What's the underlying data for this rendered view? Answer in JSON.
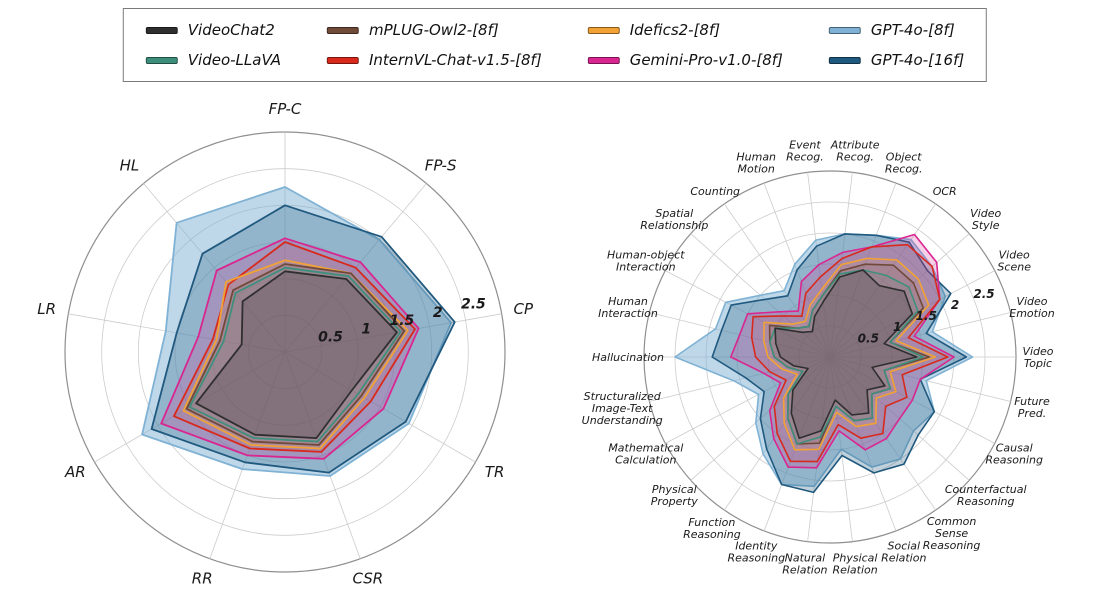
{
  "legend": {
    "position": "top",
    "items": [
      {
        "label": "VideoChat2",
        "color": "#2f2f2f"
      },
      {
        "label": "mPLUG-Owl2-[8f]",
        "color": "#6f4a38"
      },
      {
        "label": "Idefics2-[8f]",
        "color": "#f2a234"
      },
      {
        "label": "GPT-4o-[8f]",
        "color": "#7fb2d4"
      },
      {
        "label": "Video-LLaVA",
        "color": "#3d8f7c"
      },
      {
        "label": "InternVL-Chat-v1.5-[8f]",
        "color": "#d9291c"
      },
      {
        "label": "Gemini-Pro-v1.0-[8f]",
        "color": "#d92690"
      },
      {
        "label": "GPT-4o-[16f]",
        "color": "#20597f"
      }
    ]
  },
  "chart_data": [
    {
      "type": "radar",
      "grid": "polar-circles-and-spokes",
      "legend_position": "top-shared",
      "categories": [
        "FP-C",
        "FP-S",
        "CP",
        "TR",
        "CSR",
        "RR",
        "AR",
        "LR",
        "HL"
      ],
      "rticks": [
        "0.5",
        "1",
        "1.5",
        "2",
        "2.5"
      ],
      "rtick_values": [
        0.5,
        1,
        1.5,
        2,
        2.5
      ],
      "rmax": 3.0,
      "series": [
        {
          "name": "GPT-4o-[8f]",
          "color": "#7fb2d4",
          "alpha": 0.5,
          "values": [
            2.25,
            2.0,
            2.3,
            1.95,
            1.8,
            1.7,
            2.25,
            1.65,
            2.3
          ]
        },
        {
          "name": "GPT-4o-[16f]",
          "color": "#20597f",
          "alpha": 0.28,
          "values": [
            2.0,
            2.05,
            2.35,
            1.9,
            1.75,
            1.6,
            2.1,
            1.5,
            1.75
          ]
        },
        {
          "name": "Gemini-Pro-v1.0-[8f]",
          "color": "#d92690",
          "alpha": 0.22,
          "values": [
            1.55,
            1.6,
            1.85,
            1.55,
            1.55,
            1.5,
            1.95,
            1.2,
            1.45
          ]
        },
        {
          "name": "InternVL-Chat-v1.5-[8f]",
          "color": "#d9291c",
          "alpha": 0.1,
          "values": [
            1.5,
            1.5,
            1.8,
            1.35,
            1.45,
            1.4,
            1.75,
            1.0,
            1.2
          ]
        },
        {
          "name": "Idefics2-[8f]",
          "color": "#f2a234",
          "alpha": 0.1,
          "values": [
            1.25,
            1.4,
            1.7,
            1.25,
            1.4,
            1.35,
            1.6,
            0.95,
            1.25
          ]
        },
        {
          "name": "mPLUG-Owl2-[8f]",
          "color": "#6f4a38",
          "alpha": 0.12,
          "values": [
            1.2,
            1.4,
            1.65,
            1.2,
            1.35,
            1.3,
            1.55,
            0.9,
            1.1
          ]
        },
        {
          "name": "Video-LLaVA",
          "color": "#3d8f7c",
          "alpha": 0.1,
          "values": [
            1.15,
            1.35,
            1.6,
            1.15,
            1.3,
            1.25,
            1.5,
            0.85,
            1.05
          ]
        },
        {
          "name": "VideoChat2",
          "color": "#2f2f2f",
          "alpha": 0.22,
          "values": [
            1.1,
            1.3,
            1.55,
            1.05,
            1.25,
            1.2,
            1.4,
            0.6,
            0.9
          ]
        }
      ]
    },
    {
      "type": "radar",
      "grid": "polar-circles-and-spokes",
      "legend_position": "top-shared",
      "categories": [
        "Attribute\nRecog.",
        "Object\nRecog.",
        "OCR",
        "Video\nStyle",
        "Video\nScene",
        "Video\nEmotion",
        "Video\nTopic",
        "Future\nPred.",
        "Causal\nReasoning",
        "Counterfactual\nReasoning",
        "Common\nSense\nReasoning",
        "Social\nRelation",
        "Physical\nRelation",
        "Natural\nRelation",
        "Identity\nReasoning",
        "Function\nReasoning",
        "Physical\nProperty",
        "Mathematical\nCalculation",
        "Structuralized\nImage-Text\nUnderstanding",
        "Hallucination",
        "Human\nInteraction",
        "Human-object\nInteraction",
        "Spatial\nRelationship",
        "Counting",
        "Human\nMotion",
        "Event\nRecog."
      ],
      "rticks": [
        "0.5",
        "1",
        "1.5",
        "2",
        "2.5"
      ],
      "rtick_values": [
        0.5,
        1,
        1.5,
        2,
        2.5
      ],
      "rmax": 3.0,
      "series": [
        {
          "name": "GPT-4o-[8f]",
          "color": "#7fb2d4",
          "alpha": 0.5,
          "values": [
            2.0,
            2.1,
            2.3,
            2.2,
            2.1,
            1.7,
            2.3,
            1.6,
            1.9,
            1.8,
            2.0,
            1.9,
            1.5,
            2.1,
            2.2,
            1.9,
            1.6,
            1.3,
            1.6,
            2.5,
            1.9,
            1.9,
            1.5,
            1.3,
            1.6,
            1.9
          ]
        },
        {
          "name": "GPT-4o-[16f]",
          "color": "#20597f",
          "alpha": 0.28,
          "values": [
            2.0,
            2.1,
            2.25,
            2.1,
            2.2,
            1.6,
            2.2,
            1.5,
            1.9,
            1.9,
            2.1,
            2.0,
            1.6,
            2.2,
            2.2,
            1.8,
            1.5,
            1.2,
            1.4,
            1.9,
            1.8,
            1.8,
            1.4,
            1.2,
            1.5,
            1.8
          ]
        },
        {
          "name": "Gemini-Pro-v1.0-[8f]",
          "color": "#d92690",
          "alpha": 0.22,
          "values": [
            1.7,
            1.9,
            2.4,
            2.3,
            2.0,
            1.4,
            2.0,
            1.5,
            1.5,
            1.5,
            1.6,
            1.6,
            1.2,
            1.8,
            1.9,
            1.6,
            1.3,
            0.9,
            1.1,
            1.6,
            1.5,
            1.5,
            1.1,
            0.9,
            1.3,
            1.5
          ]
        },
        {
          "name": "InternVL-Chat-v1.5-[8f]",
          "color": "#d9291c",
          "alpha": 0.1,
          "values": [
            1.6,
            1.9,
            2.2,
            2.2,
            2.0,
            1.3,
            1.9,
            1.2,
            1.4,
            1.2,
            1.5,
            1.4,
            1.1,
            1.7,
            1.8,
            1.5,
            1.2,
            0.8,
            1.0,
            1.2,
            1.3,
            1.4,
            1.0,
            0.8,
            1.1,
            1.3
          ]
        },
        {
          "name": "Idefics2-[8f]",
          "color": "#f2a234",
          "alpha": 0.1,
          "values": [
            1.5,
            1.7,
            1.9,
            1.9,
            1.8,
            1.1,
            1.7,
            1.0,
            1.2,
            1.0,
            1.3,
            1.2,
            0.9,
            1.5,
            1.6,
            1.3,
            1.0,
            0.6,
            0.8,
            1.0,
            1.1,
            1.2,
            0.8,
            0.7,
            0.9,
            1.1
          ]
        },
        {
          "name": "mPLUG-Owl2-[8f]",
          "color": "#6f4a38",
          "alpha": 0.12,
          "values": [
            1.4,
            1.6,
            1.8,
            1.8,
            1.7,
            1.0,
            1.6,
            0.9,
            1.1,
            0.9,
            1.2,
            1.1,
            0.8,
            1.4,
            1.5,
            1.2,
            0.9,
            0.5,
            0.7,
            0.9,
            1.0,
            1.1,
            0.7,
            0.6,
            0.8,
            1.0
          ]
        },
        {
          "name": "Video-LLaVA",
          "color": "#3d8f7c",
          "alpha": 0.1,
          "values": [
            1.35,
            1.5,
            1.6,
            1.7,
            1.6,
            1.0,
            1.5,
            0.9,
            1.1,
            0.9,
            1.2,
            1.1,
            0.8,
            1.3,
            1.5,
            1.2,
            0.9,
            0.5,
            0.7,
            0.9,
            1.0,
            1.0,
            0.7,
            0.6,
            0.8,
            1.0
          ]
        },
        {
          "name": "VideoChat2",
          "color": "#2f2f2f",
          "alpha": 0.22,
          "values": [
            1.3,
            1.5,
            1.4,
            1.6,
            1.5,
            0.9,
            1.4,
            0.7,
            1.0,
            0.8,
            1.1,
            1.0,
            0.7,
            1.2,
            1.4,
            1.1,
            0.8,
            0.4,
            0.6,
            0.8,
            0.9,
            1.0,
            0.6,
            0.5,
            0.7,
            0.9
          ]
        }
      ]
    }
  ]
}
